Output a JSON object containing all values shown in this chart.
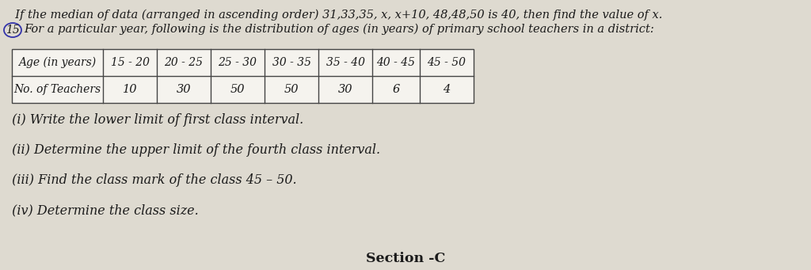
{
  "line1": "  If the median of data (arranged in ascending order) 31,33,35, x, x+10, 48,48,50 is 40, then find the value of x.",
  "line2": "For a particular year, following is the distribution of ages (in years) of primary school teachers in a district:",
  "circle_num": "15",
  "table_headers": [
    "Age (in years)",
    "15 - 20",
    "20 - 25",
    "25 - 30",
    "30 - 35",
    "35 - 40",
    "40 - 45",
    "45 - 50"
  ],
  "table_row_label": "No. of Teachers",
  "table_values": [
    "10",
    "30",
    "50",
    "50",
    "30",
    "6",
    "4"
  ],
  "question_i": " (i) Write the lower limit of first class interval.",
  "question_ii": " (ii) Determine the upper limit of the fourth class interval.",
  "question_iii": " (iii) Find the class mark of the class 45 – 50.",
  "question_iv": " (iv) Determine the class size.",
  "section": "Section -C",
  "bg_color": "#dedad0",
  "text_color": "#1a1a1a",
  "table_bg": "#f5f3ee",
  "table_border_color": "#444444",
  "font_size_main": 10.5,
  "font_size_table_hdr": 10.0,
  "font_size_table_val": 10.5,
  "font_size_questions": 11.5,
  "font_size_section": 12.5
}
